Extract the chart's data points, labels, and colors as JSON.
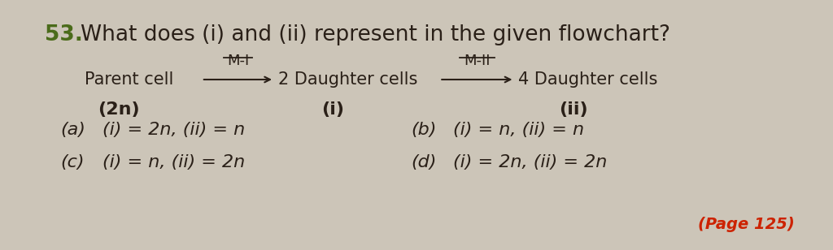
{
  "background_color": "#ccc5b8",
  "question_number": "53.",
  "question_text": "What does (i) and (ii) represent in the given flowchart?",
  "question_fontsize": 19,
  "question_color": "#2a2018",
  "number_color": "#4a6b1a",
  "flowchart": {
    "parent_cell": "Parent cell",
    "parent_label": "(2n)",
    "arrow1_label": "M-I",
    "middle_text": "2 Daughter cells",
    "middle_label": "(i)",
    "arrow2_label": "M-II",
    "right_text": "4 Daughter cells",
    "right_label": "(ii)"
  },
  "options": [
    {
      "letter": "(a)",
      "text": "(i) = 2n, (ii) = n"
    },
    {
      "letter": "(b)",
      "text": "(i) = n, (ii) = n"
    },
    {
      "letter": "(c)",
      "text": "(i) = n, (ii) = 2n"
    },
    {
      "letter": "(d)",
      "text": "(i) = 2n, (ii) = 2n"
    }
  ],
  "page_ref": "(Page 125)",
  "page_ref_color": "#cc2200",
  "text_color": "#2a2018",
  "option_fontsize": 16,
  "flowchart_fontsize": 15,
  "label_fontsize": 16,
  "arrow_label_fontsize": 13
}
